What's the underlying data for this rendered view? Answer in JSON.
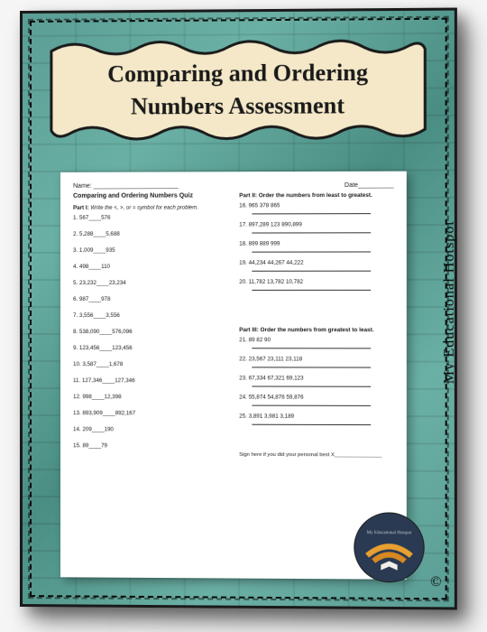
{
  "banner": {
    "line1": "Comparing and Ordering",
    "line2": "Numbers Assessment",
    "bg_color": "#f4e8c8",
    "stroke": "#1a1a1a"
  },
  "colors": {
    "cover_bg": "#5a9d94",
    "worksheet_bg": "#ffffff",
    "text": "#1a1a1a",
    "logo_outer": "#2a3a52",
    "logo_wave1": "#e8a030",
    "logo_wave2": "#d88820"
  },
  "worksheet": {
    "name_label": "Name: ________________________",
    "date_label": "Date__________",
    "quiz_title": "Comparing and Ordering Numbers Quiz",
    "part1_title": "Part I:",
    "part1_instr": "Write the <, >, or = symbol for each problem.",
    "part1_items": [
      "1.  567____576",
      "2.  5,288____5,688",
      "3.  1,009____935",
      "4.  498____110",
      "5.  23,232____23,234",
      "6.  987____978",
      "7.  3,556____3,556",
      "8.  538,090____576,096",
      "9.  123,456____123,456",
      "10. 3,587____1,678",
      "11. 127,346____127,346",
      "12. 998____12,398",
      "13. 893,909____892,167",
      "14. 209____190",
      "15. 89____79"
    ],
    "part2_title": "Part II: Order the numbers from least to greatest.",
    "part2_items": [
      "16.  965        378        865",
      "17.  897,289    123    890,899",
      "18.  899        889        999",
      "19.  44,234   44,267   44,222",
      "20.  11,782   13,782   10,782"
    ],
    "part3_title": "Part III: Order the numbers from greatest to least.",
    "part3_items": [
      "21.  89         82         90",
      "22.  23,567   23,111   23,118",
      "23.  67,334   67,321   69,123",
      "24.  55,874   54,876   59,876",
      "25.  3,891     3,981     3,189"
    ],
    "sign_line": "Sign here if you did your personal best X________________"
  },
  "side_label": "My Educational Hotspot",
  "logo_text": "My Educational Hotspot",
  "copyright": "©"
}
